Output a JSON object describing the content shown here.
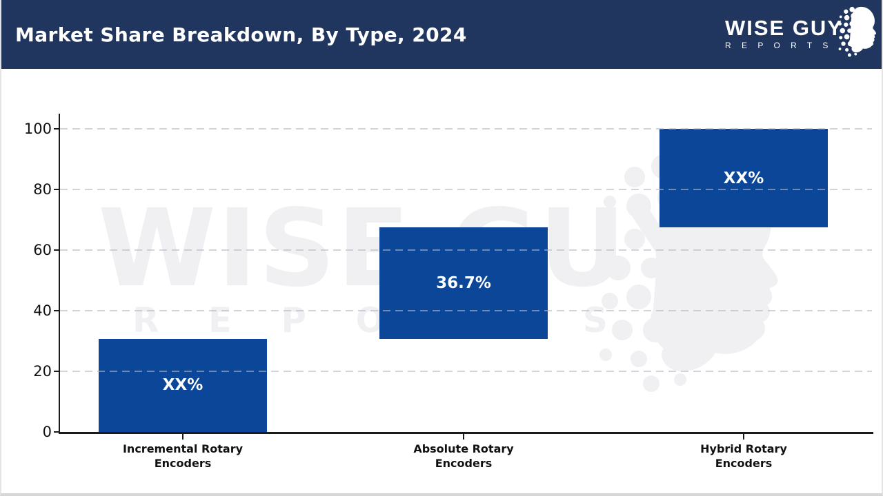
{
  "header": {
    "title": "Market Share Breakdown, By Type, 2024",
    "logo": {
      "wordmark": "WISE GUY",
      "tagline": "R E P O R T S",
      "icon": "dotted-face-profile"
    }
  },
  "watermark": {
    "wordmark": "WISE GUY",
    "tagline": "R E P O R T S",
    "icon": "dotted-face-profile"
  },
  "colors": {
    "header_bg": "#21365f",
    "bar": "#0b4699",
    "bar_label": "#ffffff",
    "axis": "#1a1a1a",
    "grid": "#c9ced8",
    "watermark": "#f0f0f2",
    "category_text": "#111111"
  },
  "chart_data": {
    "type": "bar",
    "subtype": "stacked-step-waterfall",
    "title": "Market Share Breakdown, By Type, 2024",
    "xlabel": "",
    "ylabel": "",
    "categories": [
      "Incremental Rotary Encoders",
      "Absolute Rotary Encoders",
      "Hybrid Rotary Encoders"
    ],
    "category_label_lines": [
      [
        "Incremental Rotary",
        "Encoders"
      ],
      [
        "Absolute Rotary",
        "Encoders"
      ],
      [
        "Hybrid Rotary",
        "Encoders"
      ]
    ],
    "segments": [
      {
        "category": "Incremental Rotary Encoders",
        "start": 0,
        "end": 30.7,
        "value_label": "XX%"
      },
      {
        "category": "Absolute Rotary Encoders",
        "start": 30.7,
        "end": 67.4,
        "value_label": "36.7%"
      },
      {
        "category": "Hybrid Rotary Encoders",
        "start": 67.4,
        "end": 100,
        "value_label": "XX%"
      }
    ],
    "ylim": [
      0,
      100
    ],
    "yticks": [
      0,
      20,
      40,
      60,
      80,
      100
    ],
    "grid": "horizontal-dashed",
    "grid_over_bars": true,
    "legend": "none"
  }
}
